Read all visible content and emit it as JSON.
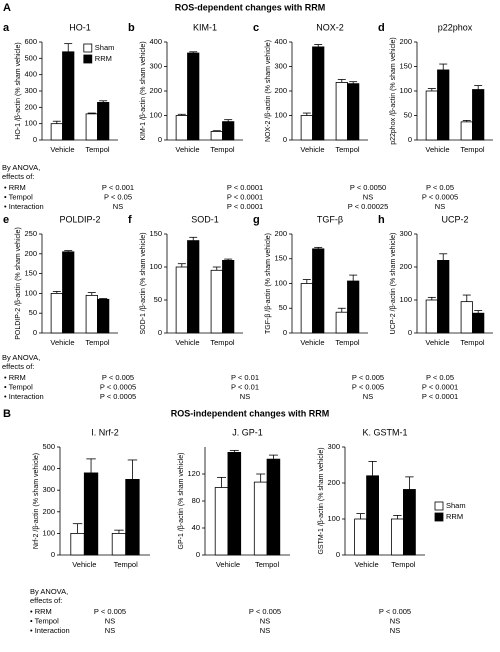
{
  "sections": [
    {
      "letter": "A",
      "title": "ROS-dependent changes with RRM"
    },
    {
      "letter": "B",
      "title": "ROS-independent changes with RRM"
    }
  ],
  "anova": [
    {
      "heading": [
        "By ANOVA,",
        "effects of:"
      ],
      "factors": [
        "• RRM",
        "• Tempol",
        "• Interaction"
      ],
      "results": [
        [
          "P < 0.001",
          "P < 0.05",
          "NS"
        ],
        [
          "P < 0.0001",
          "P < 0.0001",
          "P < 0.0001"
        ],
        [
          "P < 0.0050",
          "NS",
          "P < 0.00025"
        ],
        [
          "P < 0.05",
          "P < 0.0005",
          "NS"
        ]
      ]
    },
    {
      "heading": [
        "By ANOVA,",
        "effects of:"
      ],
      "factors": [
        "• RRM",
        "• Tempol",
        "• Interaction"
      ],
      "results": [
        [
          "P < 0.005",
          "P < 0.0005",
          "P < 0.0005"
        ],
        [
          "P < 0.01",
          "P < 0.01",
          "NS"
        ],
        [
          "P < 0.005",
          "P < 0.005",
          "NS"
        ],
        [
          "P < 0.05",
          "P < 0.0001",
          "P < 0.0001"
        ]
      ]
    },
    {
      "heading": [
        "By ANOVA,",
        "effects of:"
      ],
      "factors": [
        "• RRM",
        "• Tempol",
        "• Interaction"
      ],
      "results": [
        [
          "P < 0.005",
          "NS",
          "NS"
        ],
        [
          "P < 0.005",
          "NS",
          "NS"
        ],
        [
          "P < 0.005",
          "NS",
          "NS"
        ]
      ]
    }
  ],
  "chart_data": [
    {
      "type": "bar",
      "letter": "a",
      "title": "HO-1",
      "ylabel": "HO-1 /β-actin (% sham vehicle)",
      "categories": [
        "Vehicle",
        "Tempol"
      ],
      "series": [
        {
          "name": "Sham",
          "color": "#ffffff",
          "values": [
            100,
            160
          ],
          "errors": [
            15,
            5
          ]
        },
        {
          "name": "RRM",
          "color": "#000000",
          "values": [
            540,
            230
          ],
          "errors": [
            50,
            10
          ]
        }
      ],
      "ylim": [
        0,
        600
      ],
      "yticks": [
        0,
        100,
        200,
        300,
        400,
        500,
        600
      ],
      "legend": "upper-right"
    },
    {
      "type": "bar",
      "letter": "b",
      "title": "KIM-1",
      "ylabel": "KIM-1 /β-actin (% sham vehicle)",
      "categories": [
        "Vehicle",
        "Tempol"
      ],
      "series": [
        {
          "name": "Sham",
          "color": "#ffffff",
          "values": [
            100,
            35
          ],
          "errors": [
            5,
            3
          ]
        },
        {
          "name": "RRM",
          "color": "#000000",
          "values": [
            355,
            75
          ],
          "errors": [
            5,
            8
          ]
        }
      ],
      "ylim": [
        0,
        400
      ],
      "yticks": [
        0,
        100,
        200,
        300,
        400
      ]
    },
    {
      "type": "bar",
      "letter": "c",
      "title": "NOX-2",
      "ylabel": "NOX-2 /β-actin (% sham vehicle)",
      "categories": [
        "Vehicle",
        "Tempol"
      ],
      "series": [
        {
          "name": "Sham",
          "color": "#ffffff",
          "values": [
            100,
            235
          ],
          "errors": [
            10,
            12
          ]
        },
        {
          "name": "RRM",
          "color": "#000000",
          "values": [
            380,
            230
          ],
          "errors": [
            10,
            8
          ]
        }
      ],
      "ylim": [
        0,
        400
      ],
      "yticks": [
        0,
        100,
        200,
        300,
        400
      ]
    },
    {
      "type": "bar",
      "letter": "d",
      "title": "p22phox",
      "ylabel": "p22phox /β-actin (% sham vehicle)",
      "categories": [
        "Vehicle",
        "Tempol"
      ],
      "series": [
        {
          "name": "Sham",
          "color": "#ffffff",
          "values": [
            100,
            37
          ],
          "errors": [
            5,
            3
          ]
        },
        {
          "name": "RRM",
          "color": "#000000",
          "values": [
            143,
            103
          ],
          "errors": [
            12,
            8
          ]
        }
      ],
      "ylim": [
        0,
        200
      ],
      "yticks": [
        0,
        50,
        100,
        150,
        200
      ]
    },
    {
      "type": "bar",
      "letter": "e",
      "title": "POLDIP-2",
      "ylabel": "POLDIP-2 /β-actin (% sham vehicle)",
      "categories": [
        "Vehicle",
        "Tempol"
      ],
      "series": [
        {
          "name": "Sham",
          "color": "#ffffff",
          "values": [
            100,
            95
          ],
          "errors": [
            5,
            7
          ]
        },
        {
          "name": "RRM",
          "color": "#000000",
          "values": [
            205,
            85
          ],
          "errors": [
            3,
            2
          ]
        }
      ],
      "ylim": [
        0,
        250
      ],
      "yticks": [
        0,
        50,
        100,
        150,
        200,
        250
      ]
    },
    {
      "type": "bar",
      "letter": "f",
      "title": "SOD-1",
      "ylabel": "SOD-1 /β-actin (% sham vehicle)",
      "categories": [
        "Vehicle",
        "Tempol"
      ],
      "series": [
        {
          "name": "Sham",
          "color": "#ffffff",
          "values": [
            100,
            95
          ],
          "errors": [
            5,
            5
          ]
        },
        {
          "name": "RRM",
          "color": "#000000",
          "values": [
            140,
            110
          ],
          "errors": [
            5,
            2
          ]
        }
      ],
      "ylim": [
        0,
        150
      ],
      "yticks": [
        0,
        50,
        100,
        150
      ]
    },
    {
      "type": "bar",
      "letter": "g",
      "title": "TGF-β",
      "ylabel": "TGF-β /β-actin (% sham vehicle)",
      "categories": [
        "Vehicle",
        "Tempol"
      ],
      "series": [
        {
          "name": "Sham",
          "color": "#ffffff",
          "values": [
            100,
            42
          ],
          "errors": [
            8,
            8
          ]
        },
        {
          "name": "RRM",
          "color": "#000000",
          "values": [
            170,
            105
          ],
          "errors": [
            3,
            12
          ]
        }
      ],
      "ylim": [
        0,
        200
      ],
      "yticks": [
        0,
        50,
        100,
        150,
        200
      ]
    },
    {
      "type": "bar",
      "letter": "h",
      "title": "UCP-2",
      "ylabel": "UCP-2 /β-actin (% sham vehicle)",
      "categories": [
        "Vehicle",
        "Tempol"
      ],
      "series": [
        {
          "name": "Sham",
          "color": "#ffffff",
          "values": [
            100,
            95
          ],
          "errors": [
            8,
            20
          ]
        },
        {
          "name": "RRM",
          "color": "#000000",
          "values": [
            220,
            60
          ],
          "errors": [
            20,
            8
          ]
        }
      ],
      "ylim": [
        0,
        300
      ],
      "yticks": [
        0,
        100,
        200,
        300
      ]
    },
    {
      "type": "bar",
      "title": "I. Nrf-2",
      "ylabel": "Nrf-2 /β-actin (% sham vehicle)",
      "categories": [
        "Vehicle",
        "Tempol"
      ],
      "series": [
        {
          "name": "Sham",
          "color": "#ffffff",
          "values": [
            100,
            100
          ],
          "errors": [
            45,
            15
          ]
        },
        {
          "name": "RRM",
          "color": "#000000",
          "values": [
            380,
            350
          ],
          "errors": [
            65,
            90
          ]
        }
      ],
      "ylim": [
        0,
        500
      ],
      "yticks": [
        0,
        100,
        200,
        300,
        400,
        500
      ]
    },
    {
      "type": "bar",
      "title": "J. GP-1",
      "ylabel": "GP-1 /β-actin (% sham vehicle)",
      "categories": [
        "Vehicle",
        "Tempol"
      ],
      "series": [
        {
          "name": "Sham",
          "color": "#ffffff",
          "values": [
            100,
            108
          ],
          "errors": [
            15,
            12
          ]
        },
        {
          "name": "RRM",
          "color": "#000000",
          "values": [
            152,
            142
          ],
          "errors": [
            3,
            6
          ]
        }
      ],
      "ylim": [
        0,
        160
      ],
      "yticks": [
        0,
        40,
        80,
        120
      ]
    },
    {
      "type": "bar",
      "title": "K. GSTM-1",
      "ylabel": "GSTM-1 /β-actin (% sham vehicle)",
      "categories": [
        "Vehicle",
        "Tempol"
      ],
      "series": [
        {
          "name": "Sham",
          "color": "#ffffff",
          "values": [
            100,
            100
          ],
          "errors": [
            15,
            10
          ]
        },
        {
          "name": "RRM",
          "color": "#000000",
          "values": [
            220,
            182
          ],
          "errors": [
            40,
            35
          ]
        }
      ],
      "ylim": [
        0,
        300
      ],
      "yticks": [
        0,
        100,
        200,
        300
      ],
      "legend": "right"
    }
  ]
}
